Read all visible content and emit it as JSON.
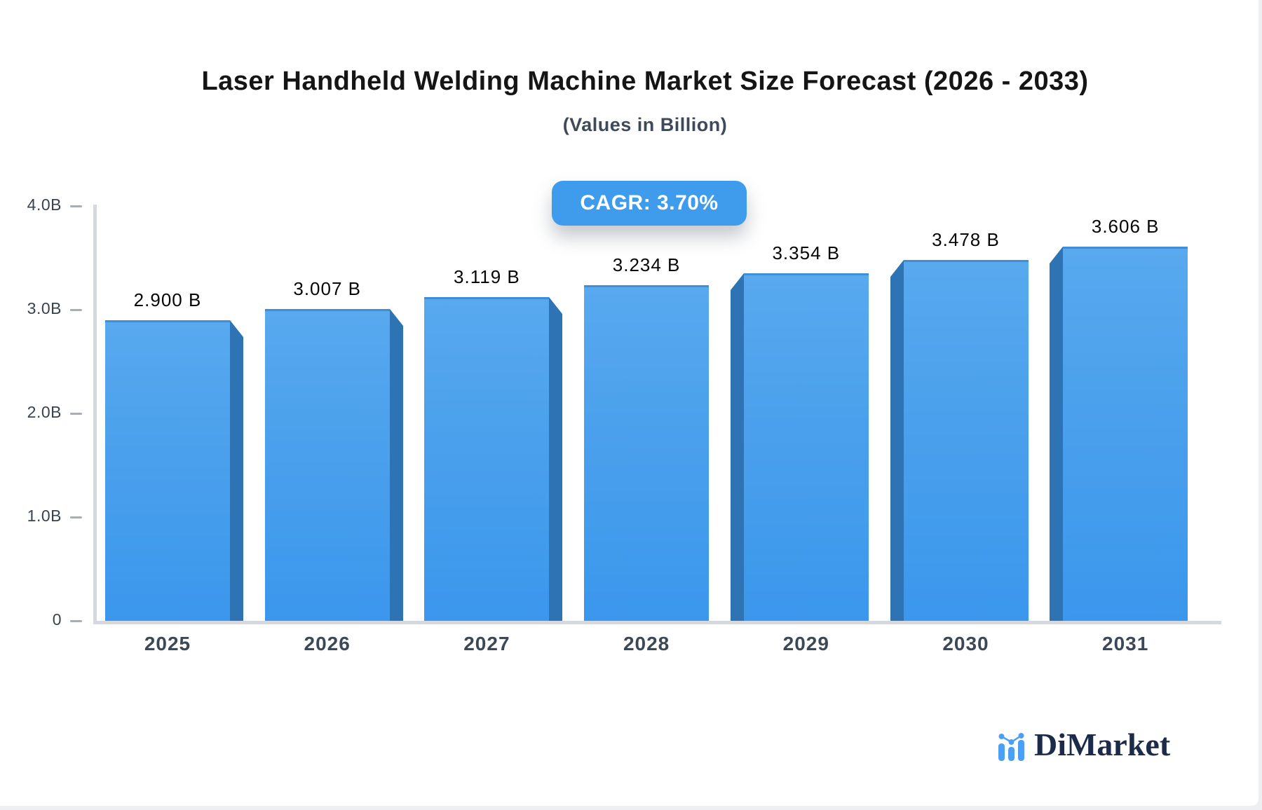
{
  "header": {
    "title": "Laser Handheld Welding Machine Market Size Forecast (2026 - 2033)",
    "subtitle": "(Values in Billion)"
  },
  "badge": {
    "label": "CAGR: 3.70%"
  },
  "chart_data": {
    "type": "bar",
    "title": "Laser Handheld Welding Machine Market Size Forecast (2026 - 2033)",
    "subtitle": "(Values in Billion)",
    "cagr": "3.70%",
    "unit": "Billion",
    "categories": [
      "2025",
      "2026",
      "2027",
      "2028",
      "2029",
      "2030",
      "2031"
    ],
    "values": [
      2.9,
      3.007,
      3.119,
      3.234,
      3.354,
      3.478,
      3.606
    ],
    "bar_labels": [
      "2.900 B",
      "3.007 B",
      "3.119 B",
      "3.234 B",
      "3.354 B",
      "3.478 B",
      "3.606 B"
    ],
    "ylim": [
      0,
      4
    ],
    "y_ticks": [
      {
        "label": "0",
        "value": 0
      },
      {
        "label": "1.0B",
        "value": 1
      },
      {
        "label": "2.0B",
        "value": 2
      },
      {
        "label": "3.0B",
        "value": 3
      },
      {
        "label": "4.0B",
        "value": 4
      }
    ],
    "grid": "none",
    "legend_position": "none",
    "colors": {
      "bar_top": "#58a9ee",
      "bar_mid": "#4aa0ec",
      "bar_bottom": "#3b97ed",
      "bar_top_edge": "#3f8fd8",
      "bar_side": "#2e74b4",
      "badge_bg": "#3f9ced",
      "axis": "#d5d9df",
      "tick": "#a6aeb8"
    }
  },
  "logo": {
    "text": "DiMarket",
    "icon": "mini-bar-chart-icon"
  }
}
